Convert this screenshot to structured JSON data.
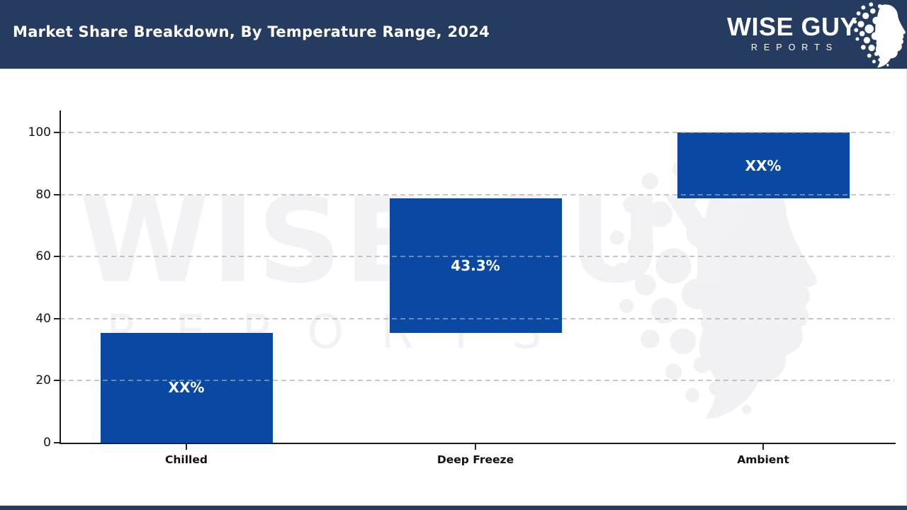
{
  "header": {
    "title": "Market Share Breakdown, By Temperature Range, 2024",
    "bg_color": "#253c60",
    "logo": {
      "wordmark": "WISE GUY",
      "subtitle": "REPORTS"
    }
  },
  "watermark": {
    "wordmark": "WISE GUY",
    "subtitle": "REPORTS"
  },
  "footer": {
    "bar_color": "#253c60"
  },
  "chart_data": {
    "type": "bar",
    "subtype": "floating-waterfall",
    "title": "Market Share Breakdown, By Temperature Range, 2024",
    "categories": [
      "Chilled",
      "Deep Freeze",
      "Ambient"
    ],
    "series": [
      {
        "name": "Market Share (%)",
        "segments": [
          {
            "category": "Chilled",
            "start": 0,
            "end": 35.4,
            "value": 35.4,
            "label": "XX%"
          },
          {
            "category": "Deep Freeze",
            "start": 35.4,
            "end": 78.7,
            "value": 43.3,
            "label": "43.3%"
          },
          {
            "category": "Ambient",
            "start": 78.7,
            "end": 100,
            "value": 21.3,
            "label": "XX%"
          }
        ]
      }
    ],
    "ylim": [
      0,
      100
    ],
    "yticks": [
      0,
      20,
      40,
      60,
      80,
      100
    ],
    "xlabel": "",
    "ylabel": "",
    "grid": "horizontal-dashed",
    "legend": "none",
    "bar_color": "#0a49a3",
    "bar_label_color": "#ffffff",
    "axis_color": "#1a1a1a",
    "gridline_color": "#d9d9d9"
  }
}
